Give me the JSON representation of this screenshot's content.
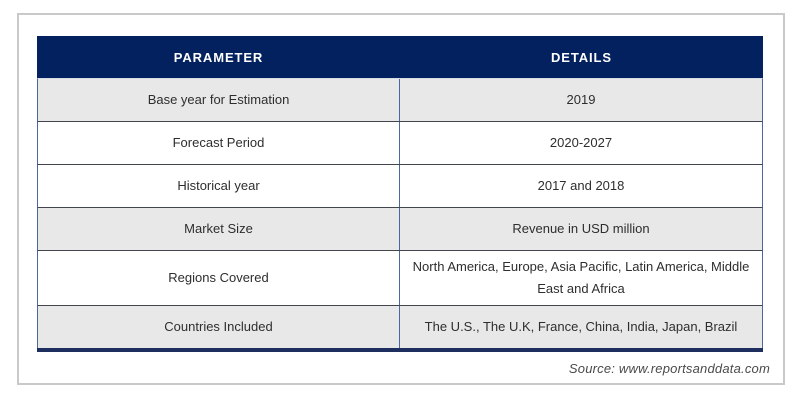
{
  "table": {
    "headers": [
      "PARAMETER",
      "DETAILS"
    ],
    "rows": [
      {
        "parameter": "Base year for Estimation",
        "details": "2019",
        "shaded": true
      },
      {
        "parameter": "Forecast Period",
        "details": "2020-2027",
        "shaded": false
      },
      {
        "parameter": "Historical year",
        "details": "2017 and 2018",
        "shaded": false
      },
      {
        "parameter": "Market Size",
        "details": "Revenue in USD million",
        "shaded": true
      },
      {
        "parameter": "Regions Covered",
        "details": "North America, Europe, Asia Pacific, Latin America, Middle East and Africa",
        "shaded": false
      },
      {
        "parameter": "Countries Included",
        "details": "The U.S., The  U.K, France, China, India, Japan, Brazil",
        "shaded": true
      }
    ]
  },
  "source": {
    "text": "Source: www.reportsanddata.com"
  },
  "colors": {
    "header_bg": "#03215E",
    "shaded_row_bg": "#E8E8E8",
    "bottom_bar": "#1E2E5E",
    "vertical_border": "#4A67A0",
    "horizontal_border": "#41454E",
    "card_border": "#C9C9C9",
    "cell_text": "#2E2E2E",
    "source_text": "#4A4A4A"
  }
}
